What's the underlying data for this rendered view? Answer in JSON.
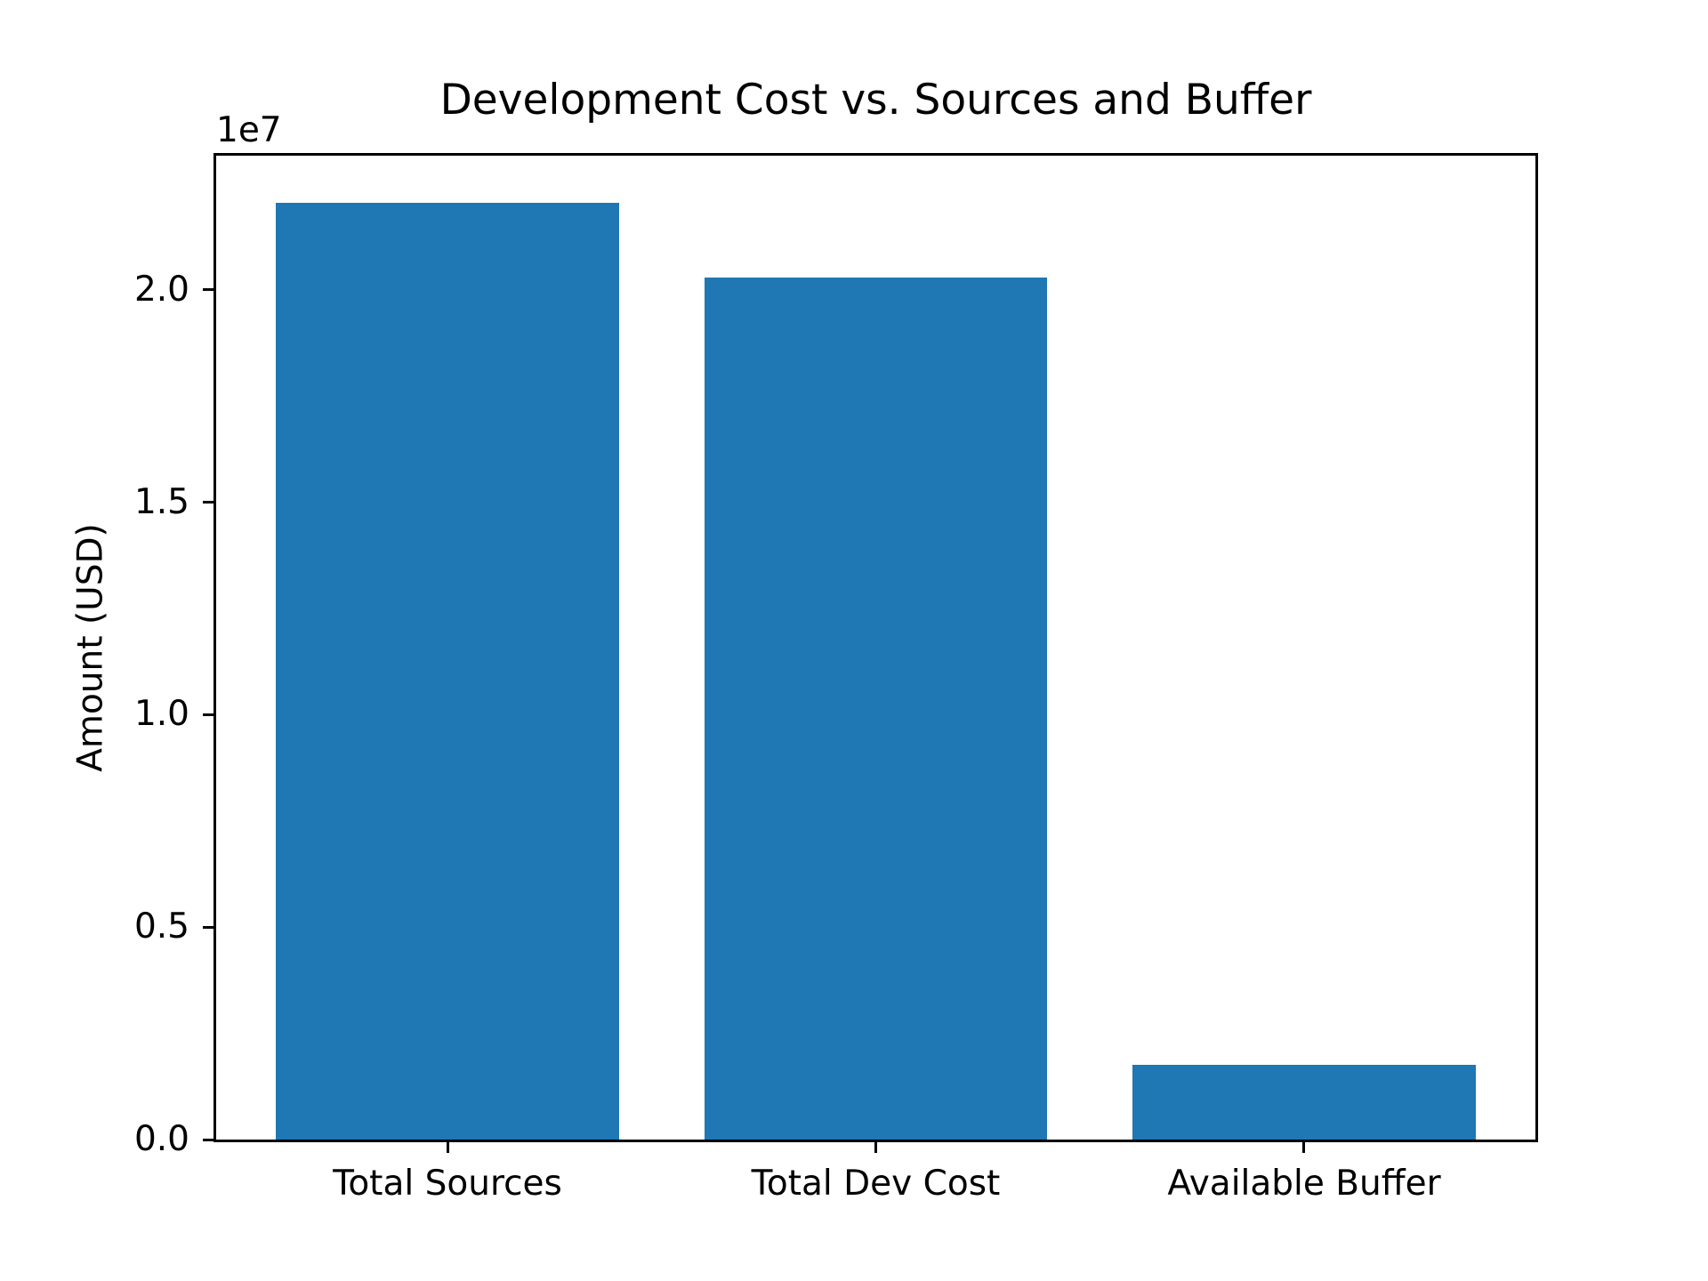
{
  "chart_data": {
    "type": "bar",
    "title": "Development Cost vs. Sources and Buffer",
    "categories": [
      "Total Sources",
      "Total Dev Cost",
      "Available Buffer"
    ],
    "values": [
      22050000,
      20300000,
      1750000
    ],
    "xlabel": "",
    "ylabel": "Amount (USD)",
    "y_offset_text": "1e7",
    "ylim": [
      0,
      23160000
    ],
    "yticks": [
      0,
      5000000,
      10000000,
      15000000,
      20000000
    ],
    "ytick_labels": [
      "0.0",
      "0.5",
      "1.0",
      "1.5",
      "2.0"
    ],
    "bar_color": "#1f77b4",
    "axis_color": "#000000",
    "background_color": "#ffffff",
    "grid": false,
    "legend": false,
    "bar_width_fraction": 0.8
  }
}
